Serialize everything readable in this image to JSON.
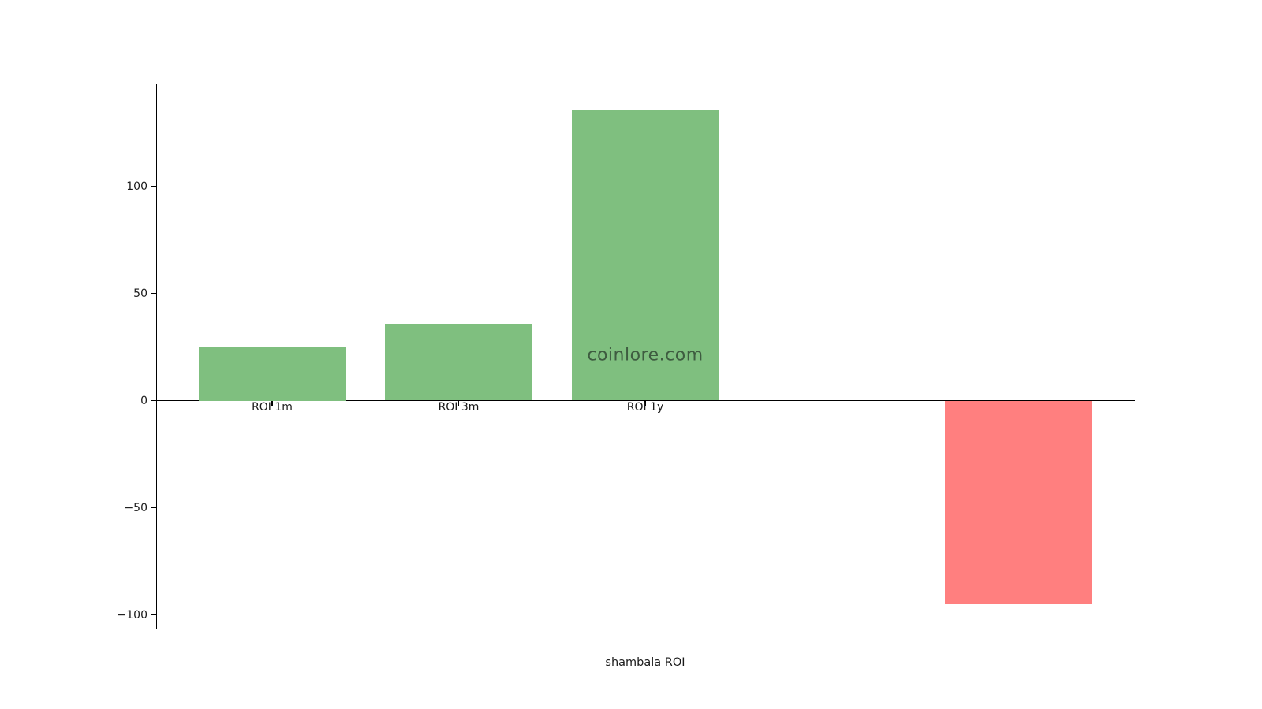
{
  "page": {
    "background": "#ffffff"
  },
  "watermark": {
    "text": "coinlore.com",
    "color": "#3e5c40"
  },
  "chart_data": {
    "type": "bar",
    "title": "",
    "xlabel": "shambala ROI",
    "ylabel": "",
    "categories": [
      "ROI 1m",
      "ROI 3m",
      "ROI 1y",
      ""
    ],
    "x_positions": [
      0,
      1,
      2,
      4
    ],
    "values": [
      25,
      36,
      136,
      -95
    ],
    "bar_colors": [
      "#7fbf7f",
      "#7fbf7f",
      "#7fbf7f",
      "#ff7f7f"
    ],
    "positive_color": "#7fbf7f",
    "negative_color": "#ff7f7f",
    "yticks": [
      {
        "value": 100,
        "label": "100"
      },
      {
        "value": 50,
        "label": "50"
      },
      {
        "value": 0,
        "label": "0"
      },
      {
        "value": -50,
        "label": "−50"
      },
      {
        "value": -100,
        "label": "−100"
      }
    ],
    "ylim": [
      -106.5,
      147.5
    ],
    "xlim": [
      -0.62,
      4.64
    ],
    "grid": false,
    "legend": null
  }
}
